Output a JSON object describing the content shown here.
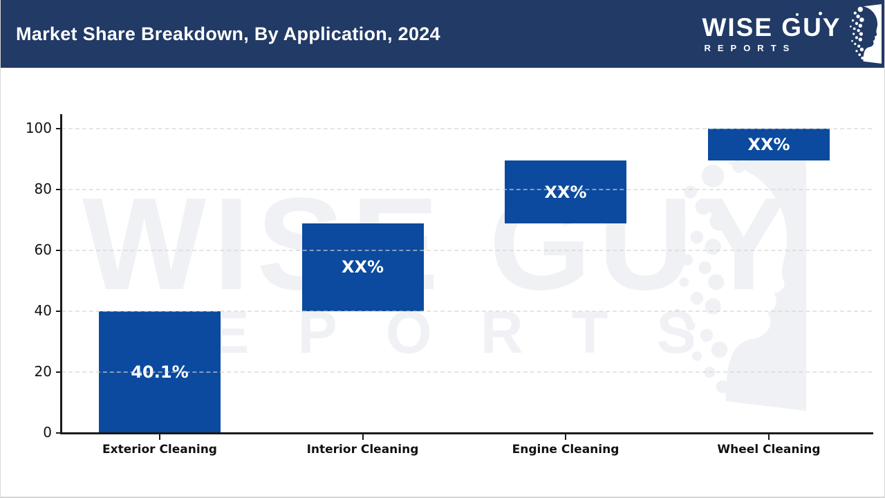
{
  "header": {
    "title": "Market Share Breakdown, By Application, 2024",
    "logo": {
      "wordmark": "WISE GUY",
      "subtext": "REPORTS",
      "icon": "face-profile-dots-icon"
    }
  },
  "watermark": {
    "wordmark": "WISE GUY",
    "subtext": "REPORTS",
    "icon": "face-profile-dots-icon"
  },
  "colors": {
    "header_bg": "#213a66",
    "bar_fill": "#0b4a9e",
    "title_text": "#ffffff",
    "watermark": "#f0f1f4",
    "axis": "#1a1a1a",
    "gridline": "#d4d4d4"
  },
  "chart_data": {
    "type": "bar",
    "subtype": "waterfall",
    "title": "Market Share Breakdown, By Application, 2024",
    "xlabel": "",
    "ylabel": "",
    "categories": [
      "Exterior Cleaning",
      "Interior Cleaning",
      "Engine Cleaning",
      "Wheel Cleaning"
    ],
    "segments": [
      {
        "category": "Exterior Cleaning",
        "start": 0,
        "end": 40.1,
        "label": "40.1%"
      },
      {
        "category": "Interior Cleaning",
        "start": 40.1,
        "end": 68.8,
        "label": "XX%"
      },
      {
        "category": "Engine Cleaning",
        "start": 68.8,
        "end": 89.5,
        "label": "XX%"
      },
      {
        "category": "Wheel Cleaning",
        "start": 89.5,
        "end": 100,
        "label": "XX%"
      }
    ],
    "yticks": [
      0,
      20,
      40,
      60,
      80,
      100
    ],
    "ylim": [
      0,
      105
    ],
    "grid": "horizontal-dashed",
    "legend": "none"
  }
}
